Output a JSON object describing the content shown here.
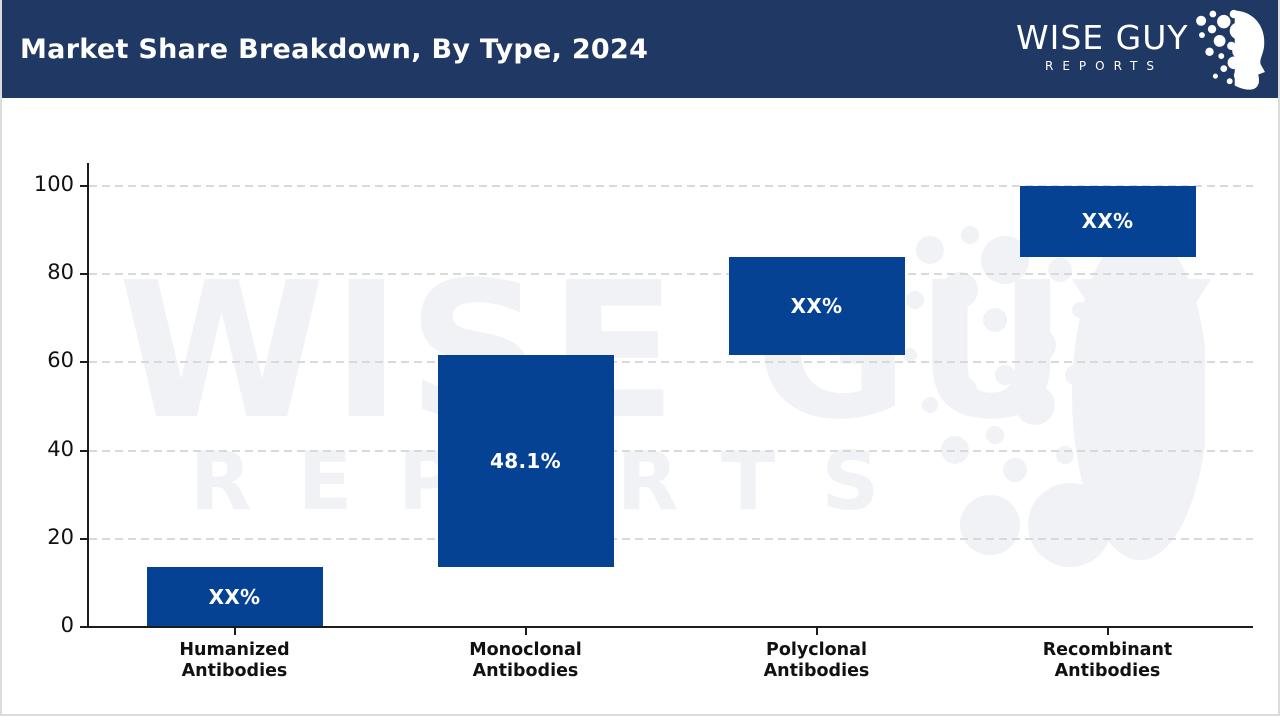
{
  "header": {
    "title": "Market Share Breakdown, By Type, 2024",
    "logo_line1": "WISE GUY",
    "logo_line2": "REPORTS"
  },
  "watermark": {
    "line1": "WISE GUY",
    "line2": "REPORTS"
  },
  "colors": {
    "header_bg": "#1f3864",
    "bar": "#054294",
    "bar_label": "#ffffff",
    "axis": "#1c1c1c",
    "grid": "#d9d9d9",
    "watermark": "#f0f2f5"
  },
  "chart_data": {
    "type": "bar",
    "subtype": "floating-waterfall",
    "title": "Market Share Breakdown, By Type, 2024",
    "xlabel": "",
    "ylabel": "",
    "categories": [
      "Humanized Antibodies",
      "Monoclonal Antibodies",
      "Polyclonal Antibodies",
      "Recombinant Antibodies"
    ],
    "bars": [
      {
        "category_lines": [
          "Humanized",
          "Antibodies"
        ],
        "base": 0,
        "top": 13.5,
        "label": "XX%"
      },
      {
        "category_lines": [
          "Monoclonal",
          "Antibodies"
        ],
        "base": 13.5,
        "top": 61.6,
        "label": "48.1%"
      },
      {
        "category_lines": [
          "Polyclonal",
          "Antibodies"
        ],
        "base": 61.6,
        "top": 84.0,
        "label": "XX%"
      },
      {
        "category_lines": [
          "Recombinant",
          "Antibodies"
        ],
        "base": 84.0,
        "top": 100.0,
        "label": "XX%"
      }
    ],
    "known_values": {
      "Monoclonal Antibodies": 48.1
    },
    "masked_values_label": "XX%",
    "yticks": [
      0,
      20,
      40,
      60,
      80,
      100
    ],
    "ylim": [
      0,
      105
    ],
    "grid": "dashed-horizontal",
    "legend": "none",
    "bar_color": "#054294",
    "bar_label_color": "#ffffff"
  }
}
